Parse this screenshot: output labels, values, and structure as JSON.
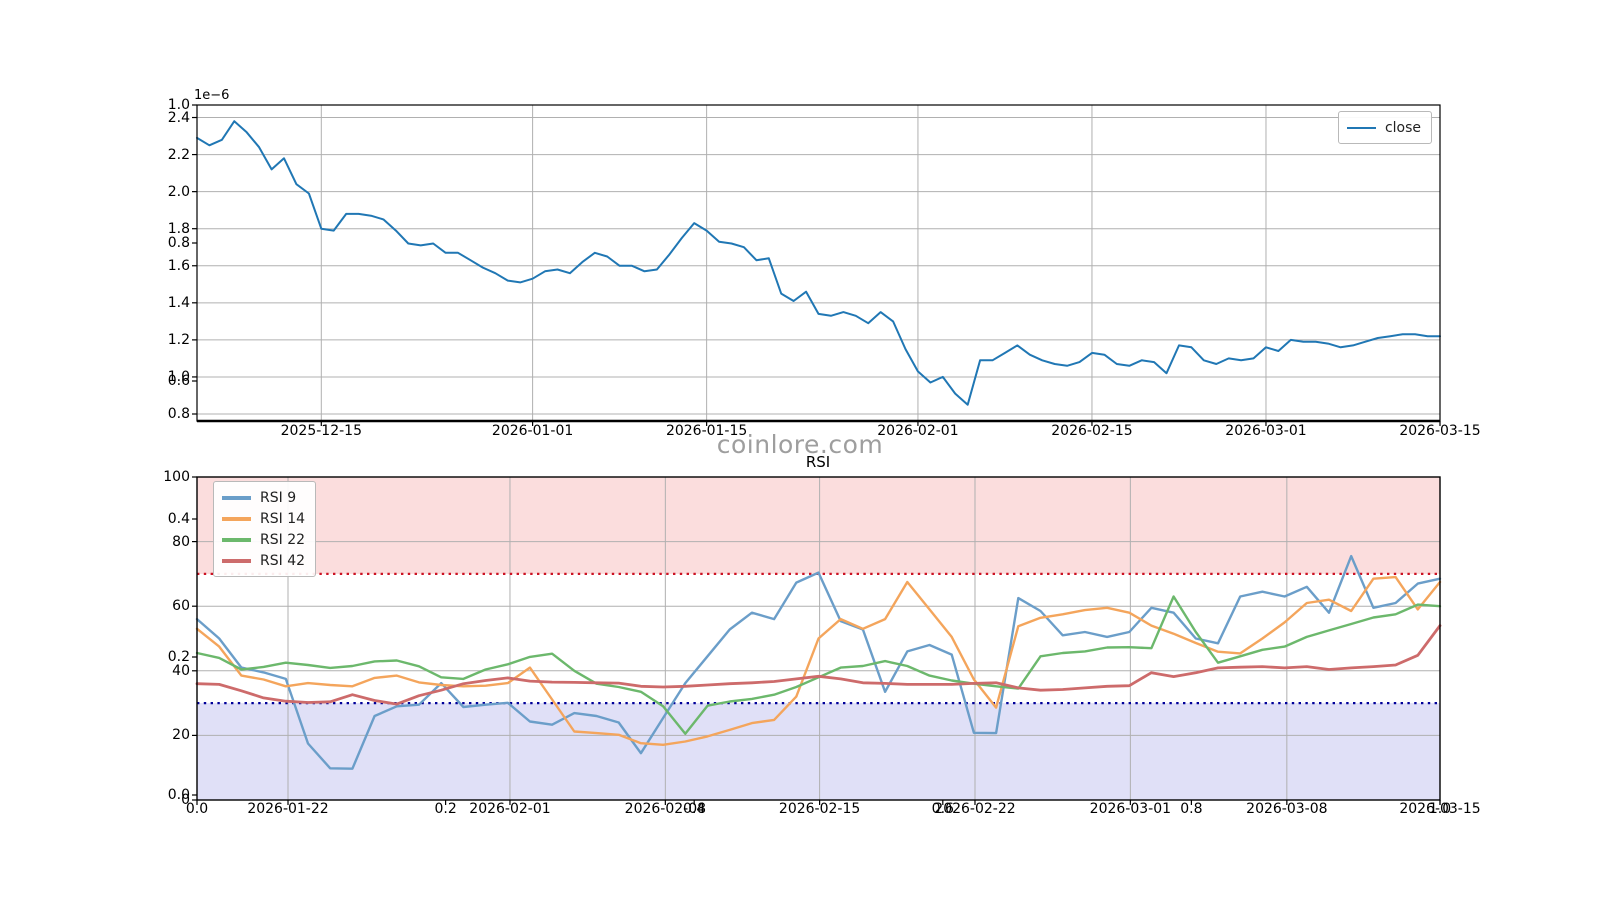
{
  "watermark": "coinlore.com",
  "colors": {
    "background": "#ffffff",
    "grid": "#b0b0b0",
    "spine": "#000000",
    "close_line": "#2077b4",
    "rsi9_line": "#6b9ec9",
    "rsi14_line": "#f4a55c",
    "rsi22_line": "#6cb86c",
    "rsi42_line": "#cd6b6b",
    "overbought_band": "#fbdddd",
    "oversold_band": "#e0e0f7",
    "overbought_dotted": "#cc1122",
    "oversold_dotted": "#000099",
    "watermark_text": "#9e9e9e"
  },
  "overlay_axis": {
    "x_tick_labels": [
      "0.0",
      "0.2",
      "0.4",
      "0.6",
      "0.8",
      "1.0"
    ],
    "y_tick_labels": [
      "0.0",
      "0.2",
      "0.4",
      "0.6",
      "0.8",
      "1.0"
    ]
  },
  "chart_data": [
    {
      "type": "line",
      "name": "price-panel",
      "offset_text": "1e−6",
      "ylabel": "",
      "xlabel": "",
      "ylim": [
        0.762,
        2.467
      ],
      "y_ticks": [
        0.8,
        1.0,
        1.2,
        1.4,
        1.6,
        1.8,
        2.0,
        2.2,
        2.4
      ],
      "y_unit": "1e-6",
      "x_tick_labels": [
        "2025-12-15",
        "2026-01-01",
        "2026-01-15",
        "2026-02-01",
        "2026-02-15",
        "2026-03-01",
        "2026-03-15"
      ],
      "x_tick_day_index": [
        10,
        27,
        41,
        58,
        72,
        86,
        100
      ],
      "grid": true,
      "legend_position": "upper right",
      "series": [
        {
          "name": "close",
          "color": "#2077b4",
          "width": 2,
          "values": [
            2.29,
            2.25,
            2.28,
            2.38,
            2.32,
            2.24,
            2.12,
            2.18,
            2.04,
            1.99,
            1.8,
            1.79,
            1.88,
            1.88,
            1.87,
            1.85,
            1.79,
            1.72,
            1.71,
            1.72,
            1.67,
            1.67,
            1.63,
            1.59,
            1.56,
            1.52,
            1.51,
            1.53,
            1.57,
            1.58,
            1.56,
            1.62,
            1.67,
            1.65,
            1.6,
            1.6,
            1.57,
            1.58,
            1.66,
            1.75,
            1.83,
            1.79,
            1.73,
            1.72,
            1.7,
            1.63,
            1.64,
            1.45,
            1.41,
            1.46,
            1.34,
            1.33,
            1.35,
            1.33,
            1.29,
            1.35,
            1.3,
            1.15,
            1.03,
            0.97,
            1.0,
            0.91,
            0.85,
            1.09,
            1.09,
            1.13,
            1.17,
            1.12,
            1.09,
            1.07,
            1.06,
            1.08,
            1.13,
            1.12,
            1.07,
            1.06,
            1.09,
            1.08,
            1.02,
            1.17,
            1.16,
            1.09,
            1.07,
            1.1,
            1.09,
            1.1,
            1.16,
            1.14,
            1.2,
            1.19,
            1.19,
            1.18,
            1.16,
            1.17,
            1.19,
            1.21,
            1.22,
            1.23,
            1.23,
            1.22,
            1.22
          ]
        }
      ]
    },
    {
      "type": "line",
      "name": "rsi-panel",
      "title": "RSI",
      "ylim": [
        0,
        100
      ],
      "y_ticks": [
        0,
        20,
        40,
        60,
        80,
        100
      ],
      "x_tick_labels": [
        "2026-01-22",
        "2026-02-01",
        "2026-02-08",
        "2026-02-15",
        "2026-02-22",
        "2026-03-01",
        "2026-03-08",
        "2026-03-15"
      ],
      "x_tick_day_index": [
        4.1,
        14.1,
        21.1,
        28.05,
        35.05,
        42.05,
        49.1,
        56
      ],
      "overbought_level": 70,
      "oversold_level": 30,
      "grid": true,
      "legend_position": "upper left",
      "series": [
        {
          "name": "RSI 9",
          "color": "#6b9ec9",
          "width": 2.4,
          "values": [
            56,
            50,
            41,
            39.5,
            37.5,
            17.5,
            9.8,
            9.7,
            26,
            29,
            29.5,
            36.2,
            28.8,
            29.5,
            30.1,
            24.3,
            23.3,
            26.9,
            26,
            24,
            14.5,
            25.4,
            36.2,
            44.5,
            52.8,
            58,
            56,
            67.3,
            70.4,
            55.4,
            52.8,
            33.5,
            46,
            48,
            45,
            20.8,
            20.7,
            62.5,
            58.5,
            51,
            52,
            50.5,
            52,
            59.5,
            58,
            50,
            48.5,
            63,
            64.5,
            63,
            66,
            58,
            75.5,
            59.5,
            61,
            67,
            68.5
          ]
        },
        {
          "name": "RSI 14",
          "color": "#f4a55c",
          "width": 2.4,
          "values": [
            53,
            47.5,
            38.5,
            37.3,
            35.2,
            36.2,
            35.6,
            35.2,
            37.8,
            38.5,
            36.4,
            35.6,
            35.2,
            35.4,
            36.2,
            41,
            31.1,
            21.2,
            20.7,
            20.2,
            17.6,
            17.1,
            18.1,
            19.7,
            21.7,
            23.8,
            24.8,
            32,
            50,
            56,
            53,
            56,
            67.5,
            59,
            50.5,
            37.3,
            28.6,
            53.8,
            56.4,
            57.5,
            58.8,
            59.5,
            58,
            54,
            51.5,
            48.6,
            45.9,
            45.4,
            50,
            55,
            61,
            62,
            58.5,
            68.5,
            69,
            59,
            67.5
          ]
        },
        {
          "name": "RSI 22",
          "color": "#6cb86c",
          "width": 2.4,
          "values": [
            45.5,
            44,
            40.4,
            41.2,
            42.5,
            41.8,
            40.9,
            41.5,
            42.9,
            43.2,
            41.4,
            38,
            37.5,
            40.4,
            42,
            44.3,
            45.3,
            40,
            36,
            35,
            33.5,
            29,
            20.5,
            29.2,
            30.5,
            31.3,
            32.6,
            35,
            38,
            41,
            41.5,
            43,
            41.5,
            38.5,
            37,
            36,
            35.2,
            34.5,
            44.5,
            45.5,
            46,
            47.2,
            47.3,
            47,
            63,
            52,
            42.5,
            44.5,
            46.5,
            47.5,
            50.5,
            52.5,
            54.5,
            56.5,
            57.5,
            60.5,
            60
          ]
        },
        {
          "name": "RSI 42",
          "color": "#cd6b6b",
          "width": 2.8,
          "values": [
            36,
            35.8,
            33.8,
            31.6,
            30.6,
            30.2,
            30.4,
            32.6,
            30.8,
            29.7,
            32.3,
            34,
            36,
            37,
            37.8,
            36.8,
            36.5,
            36.4,
            36.3,
            36.2,
            35.2,
            35,
            35.2,
            35.6,
            36,
            36.3,
            36.7,
            37.5,
            38.3,
            37.5,
            36.3,
            36.1,
            35.8,
            35.8,
            35.8,
            36.1,
            36.3,
            34.7,
            34,
            34.2,
            34.7,
            35.2,
            35.4,
            39.4,
            38.2,
            39.4,
            40.9,
            41.1,
            41.3,
            40.9,
            41.3,
            40.4,
            40.9,
            41.3,
            41.8,
            44.8,
            54
          ]
        }
      ]
    }
  ]
}
